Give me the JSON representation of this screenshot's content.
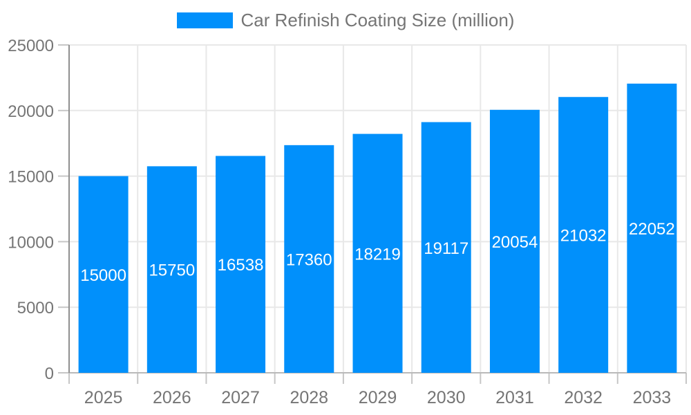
{
  "chart_data": {
    "type": "bar",
    "title": "",
    "legend": "Car Refinish Coating Size (million)",
    "legend_position": "top",
    "categories": [
      "2025",
      "2026",
      "2027",
      "2028",
      "2029",
      "2030",
      "2031",
      "2032",
      "2033"
    ],
    "series": [
      {
        "name": "Car Refinish Coating Size (million)",
        "values": [
          15000,
          15750,
          16538,
          17360,
          18219,
          19117,
          20054,
          21032,
          22052
        ]
      }
    ],
    "value_labels": [
      "15000",
      "15750",
      "16538",
      "17360",
      "18219",
      "19117",
      "20054",
      "21032",
      "22052"
    ],
    "xlabel": "",
    "ylabel": "",
    "ylim": [
      0,
      25000
    ],
    "ytick_step": 5000,
    "ytick_labels": [
      "0",
      "5000",
      "10000",
      "15000",
      "20000",
      "25000"
    ],
    "grid": true
  },
  "colors": {
    "bar": "#0190fb",
    "axis_label": "#757575",
    "legend_label": "#757575",
    "gridline": "#e8e8e8",
    "y_axis_line": "#8f8f8f",
    "x_axis_line": "#b9b9b9",
    "tick": "#c6c6c6",
    "value_label": "#ffffff",
    "background": "#ffffff"
  }
}
